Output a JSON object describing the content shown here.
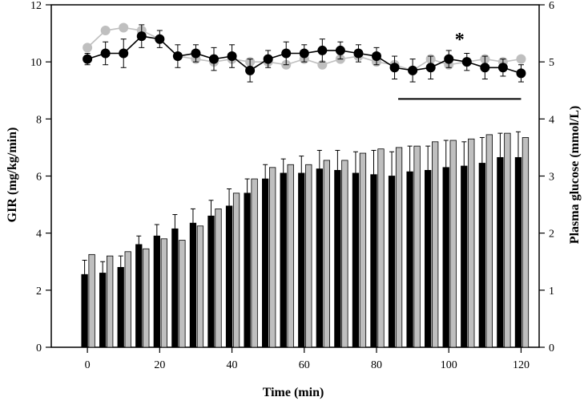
{
  "chart_data": {
    "type": "bar",
    "title": "",
    "xlabel": "Time (min)",
    "ylabel": "GIR (mg/kg/min)",
    "y2label": "Plasma glucose (mmol/L)",
    "xlim": [
      -10,
      125
    ],
    "ylim": [
      0,
      12
    ],
    "y2lim": [
      0,
      6
    ],
    "x_ticks": [
      "0",
      "20",
      "40",
      "60",
      "80",
      "100",
      "120"
    ],
    "y_ticks": [
      "0",
      "2",
      "4",
      "6",
      "8",
      "10",
      "12"
    ],
    "y2_ticks": [
      "0",
      "1",
      "2",
      "3",
      "4",
      "5",
      "6"
    ],
    "x": [
      0,
      5,
      10,
      15,
      20,
      25,
      30,
      35,
      40,
      45,
      50,
      55,
      60,
      65,
      70,
      75,
      80,
      85,
      90,
      95,
      100,
      105,
      110,
      115,
      120
    ],
    "bar_series": [
      {
        "color": "#000000",
        "values": [
          2.55,
          2.6,
          2.8,
          3.6,
          3.9,
          4.15,
          4.35,
          4.6,
          4.95,
          5.4,
          5.9,
          6.1,
          6.1,
          6.25,
          6.2,
          6.1,
          6.05,
          6.0,
          6.15,
          6.2,
          6.3,
          6.35,
          6.45,
          6.65,
          6.65
        ],
        "errors": [
          0.5,
          0.4,
          0.4,
          0.3,
          0.4,
          0.5,
          0.5,
          0.55,
          0.6,
          0.5,
          0.5,
          0.5,
          0.6,
          0.65,
          0.7,
          0.75,
          0.85,
          0.85,
          0.9,
          0.85,
          0.95,
          0.85,
          0.9,
          0.85,
          0.9
        ]
      },
      {
        "color": "#bfbfbf",
        "values": [
          3.25,
          3.2,
          3.35,
          3.45,
          3.8,
          3.75,
          4.25,
          4.85,
          5.4,
          5.9,
          6.3,
          6.4,
          6.4,
          6.55,
          6.55,
          6.8,
          6.95,
          7.0,
          7.05,
          7.2,
          7.25,
          7.3,
          7.45,
          7.5,
          7.35
        ]
      }
    ],
    "line_series": [
      {
        "axis": "right",
        "color": "#000000",
        "values": [
          5.05,
          5.15,
          5.15,
          5.45,
          5.4,
          5.1,
          5.15,
          5.05,
          5.1,
          4.85,
          5.05,
          5.15,
          5.15,
          5.2,
          5.2,
          5.15,
          5.1,
          4.9,
          4.85,
          4.9,
          5.05,
          5.0,
          4.9,
          4.9,
          4.8
        ],
        "errors": [
          0.1,
          0.2,
          0.25,
          0.2,
          0.15,
          0.2,
          0.15,
          0.2,
          0.2,
          0.2,
          0.15,
          0.2,
          0.15,
          0.2,
          0.15,
          0.15,
          0.15,
          0.2,
          0.2,
          0.2,
          0.15,
          0.15,
          0.2,
          0.15,
          0.15
        ]
      },
      {
        "axis": "right",
        "color": "#bfbfbf",
        "values": [
          5.25,
          5.55,
          5.6,
          5.55,
          5.4,
          5.1,
          5.05,
          5.0,
          5.05,
          5.0,
          5.0,
          4.95,
          5.05,
          4.95,
          5.05,
          5.1,
          5.0,
          4.95,
          4.85,
          5.05,
          4.95,
          5.0,
          5.05,
          5.0,
          5.05
        ]
      }
    ],
    "annotations": [
      {
        "text": "*",
        "x": 103,
        "y": 5.45,
        "axis": "right"
      }
    ],
    "significance_bar": {
      "x_start": 86,
      "x_end": 120,
      "y": 4.35,
      "axis": "right"
    },
    "grid": false,
    "legend": "none"
  }
}
